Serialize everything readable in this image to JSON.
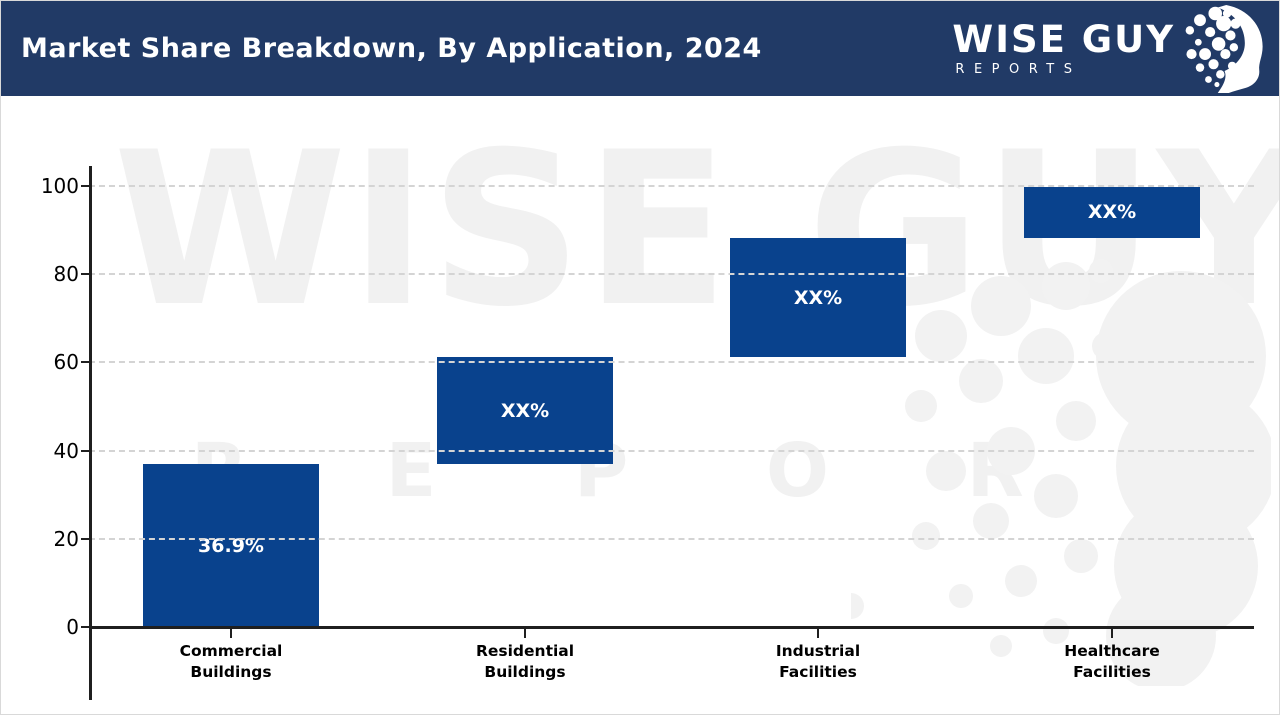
{
  "header": {
    "title": "Market Share Breakdown, By Application, 2024",
    "bg_color": "#213a66",
    "logo": {
      "line1": "WISE GUY",
      "line2": "REPORTS"
    }
  },
  "watermark": {
    "line1": "WISE GUY",
    "line2": "R E P O R T S"
  },
  "chart_data": {
    "type": "bar",
    "subtype": "waterfall-stacked-share",
    "title": "Market Share Breakdown, By Application, 2024",
    "categories": [
      "Commercial Buildings",
      "Residential Buildings",
      "Industrial Facilities",
      "Healthcare Facilities"
    ],
    "segments": [
      {
        "category_line1": "Commercial",
        "category_line2": "Buildings",
        "start": 0,
        "end": 36.9,
        "label": "36.9%"
      },
      {
        "category_line1": "Residential",
        "category_line2": "Buildings",
        "start": 36.9,
        "end": 61.2,
        "label": "XX%"
      },
      {
        "category_line1": "Industrial",
        "category_line2": "Facilities",
        "start": 61.2,
        "end": 88.2,
        "label": "XX%"
      },
      {
        "category_line1": "Healthcare",
        "category_line2": "Facilities",
        "start": 88.2,
        "end": 99.8,
        "label": "XX%"
      }
    ],
    "xlabel": "",
    "ylabel": "",
    "ylim": [
      0,
      100
    ],
    "yticks": [
      0,
      20,
      40,
      60,
      80,
      100
    ],
    "grid": "horizontal-dashed",
    "bar_color": "#09428d",
    "value_label_color": "#ffffff"
  }
}
